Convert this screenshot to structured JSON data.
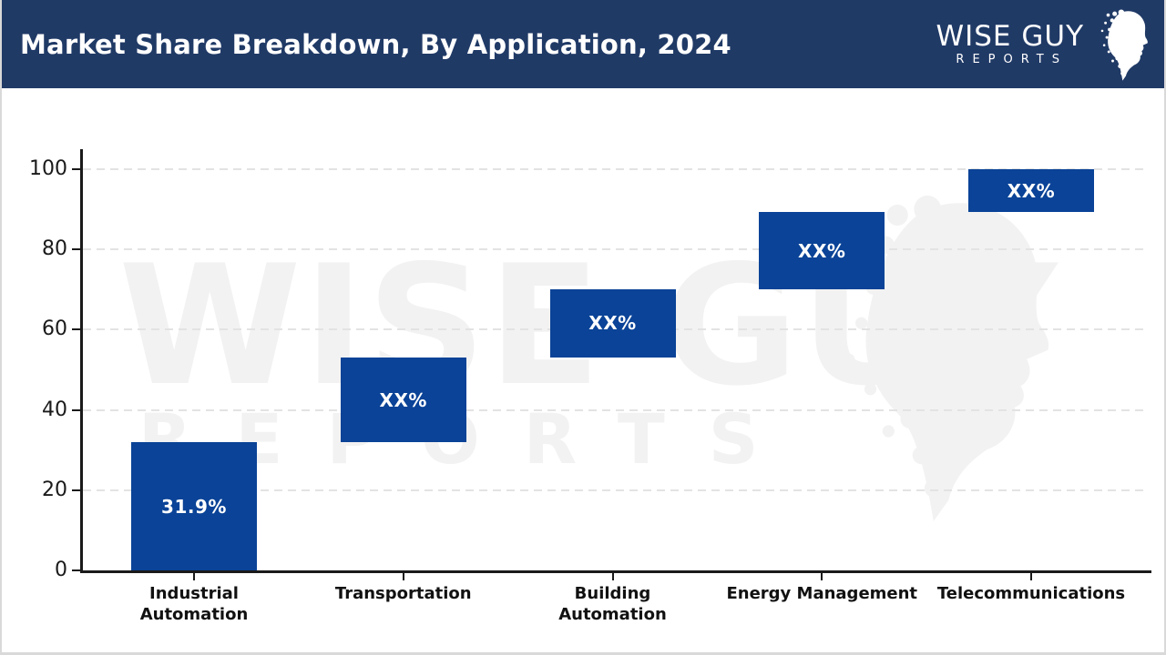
{
  "colors": {
    "header_bg": "#203a66",
    "bar": "#0a4397",
    "bar_label": "#ffffff",
    "axis": "#1a1a1a",
    "grid": "#e3e3e3",
    "watermark": "#f2f2f2",
    "title_text": "#ffffff"
  },
  "header": {
    "title": "Market Share Breakdown, By Application, 2024",
    "logo": {
      "line1": "WISE GUY",
      "line2": "REPORTS"
    }
  },
  "watermark": {
    "line1": "WISE GUY",
    "line2": "REPORTS"
  },
  "chart_data": {
    "type": "bar",
    "subtype": "waterfall",
    "title": "Market Share Breakdown, By Application, 2024",
    "categories": [
      "Industrial\nAutomation",
      "Transportation",
      "Building\nAutomation",
      "Energy Management",
      "Telecommunications"
    ],
    "segments": [
      {
        "category": "Industrial Automation",
        "start": 0,
        "end": 31.9,
        "label": "31.9%"
      },
      {
        "category": "Transportation",
        "start": 31.9,
        "end": 53.1,
        "label": "XX%"
      },
      {
        "category": "Building Automation",
        "start": 53.1,
        "end": 70.1,
        "label": "XX%"
      },
      {
        "category": "Energy Management",
        "start": 70.1,
        "end": 89.3,
        "label": "XX%"
      },
      {
        "category": "Telecommunications",
        "start": 89.3,
        "end": 100,
        "label": "XX%"
      }
    ],
    "yticks": [
      0,
      20,
      40,
      60,
      80,
      100
    ],
    "ylim": [
      0,
      105
    ],
    "xlabel": "",
    "ylabel": "",
    "grid": "dashed-horizontal",
    "legend": "none"
  }
}
